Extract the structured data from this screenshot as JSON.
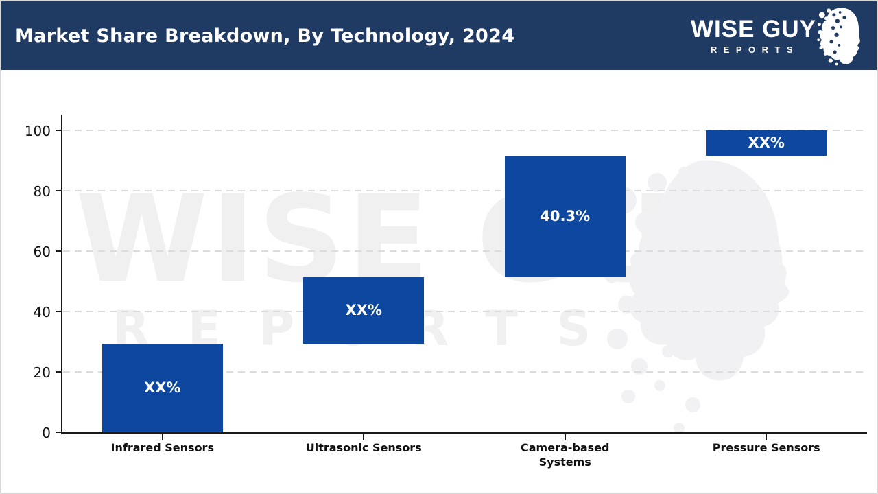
{
  "header": {
    "title": "Market Share Breakdown, By Technology, 2024",
    "logo": {
      "line1": "WISE GUY",
      "line2": "REPORTS"
    }
  },
  "watermark": {
    "line1": "WISE GUY",
    "line2": "REPORTS"
  },
  "chart_data": {
    "type": "bar",
    "subtype": "floating-waterfall",
    "title": "Market Share Breakdown, By Technology, 2024",
    "categories": [
      "Infrared Sensors",
      "Ultrasonic Sensors",
      "Camera-based Systems",
      "Pressure Sensors"
    ],
    "segments": [
      {
        "category": "Infrared Sensors",
        "start": 0,
        "end": 29.4,
        "value": 29.4,
        "label": "XX%"
      },
      {
        "category": "Ultrasonic Sensors",
        "start": 29.4,
        "end": 51.4,
        "value": 22.0,
        "label": "XX%"
      },
      {
        "category": "Camera-based Systems",
        "start": 51.4,
        "end": 91.7,
        "value": 40.3,
        "label": "40.3%"
      },
      {
        "category": "Pressure Sensors",
        "start": 91.7,
        "end": 100.0,
        "value": 8.3,
        "label": "XX%"
      }
    ],
    "xlabel": "",
    "ylabel": "",
    "ylim": [
      0,
      100
    ],
    "yticks": [
      0,
      20,
      40,
      60,
      80,
      100
    ],
    "grid": "horizontal-dashed",
    "legend": "none",
    "bar_color": "#0e479f",
    "bar_label_color": "#ffffff",
    "header_bg": "#1f3a63",
    "grid_color": "#dcdcdc",
    "axis_color": "#1a1a1a"
  }
}
